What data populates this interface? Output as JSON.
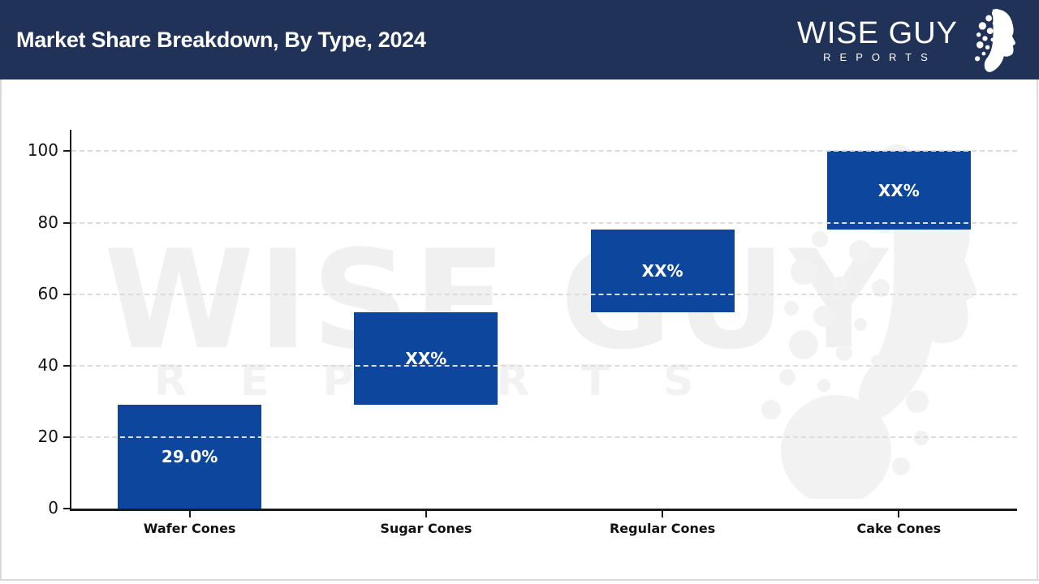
{
  "header": {
    "title": "Market Share Breakdown, By Type, 2024",
    "logo_line1": "WISE GUY",
    "logo_line2": "REPORTS"
  },
  "watermark": {
    "line1": "WISE GUY",
    "line2": "REPORTS"
  },
  "colors": {
    "header_bg": "#203258",
    "bar": "#0d479d",
    "bar_label": "#ffffff",
    "grid": "#dcdcdc",
    "axis": "#1a1a1a",
    "tick_text": "#111111",
    "watermark": "#f0f0f0"
  },
  "chart_data": {
    "type": "bar",
    "subtype": "waterfall",
    "title": "Market Share Breakdown, By Type, 2024",
    "categories": [
      "Wafer Cones",
      "Sugar Cones",
      "Regular Cones",
      "Cake Cones"
    ],
    "bars": [
      {
        "category": "Wafer Cones",
        "start": 0,
        "end": 29,
        "label": "29.0%"
      },
      {
        "category": "Sugar Cones",
        "start": 29,
        "end": 55,
        "label": "XX%"
      },
      {
        "category": "Regular Cones",
        "start": 55,
        "end": 78,
        "label": "XX%"
      },
      {
        "category": "Cake Cones",
        "start": 78,
        "end": 100,
        "label": "XX%"
      }
    ],
    "yticks": [
      0,
      20,
      40,
      60,
      80,
      100
    ],
    "ylim": [
      0,
      106
    ],
    "xlabel": "",
    "ylabel": "",
    "grid": "horizontal-dashed",
    "legend": "none"
  }
}
